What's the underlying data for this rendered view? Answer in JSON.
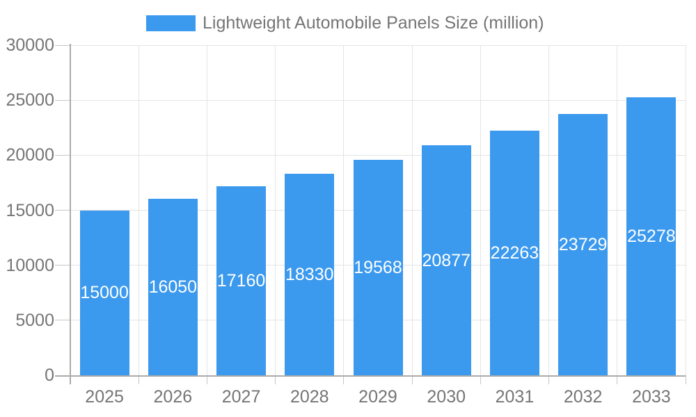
{
  "legend": {
    "label": "Lightweight Automobile Panels Size (million)",
    "swatch_color": "#3B99EE"
  },
  "chart_data": {
    "type": "bar",
    "title": "Lightweight Automobile Panels Size (million)",
    "categories": [
      "2025",
      "2026",
      "2027",
      "2028",
      "2029",
      "2030",
      "2031",
      "2032",
      "2033"
    ],
    "values": [
      15000,
      16050,
      17160,
      18330,
      19568,
      20877,
      22263,
      23729,
      25278
    ],
    "series": [
      {
        "name": "Lightweight Automobile Panels Size (million)",
        "values": [
          15000,
          16050,
          17160,
          18330,
          19568,
          20877,
          22263,
          23729,
          25278
        ]
      }
    ],
    "xlabel": "",
    "ylabel": "",
    "ylim": [
      0,
      30000
    ],
    "yticks": [
      0,
      5000,
      10000,
      15000,
      20000,
      25000,
      30000
    ],
    "grid": true,
    "legend_position": "top",
    "value_labels": "inside-center",
    "colors": {
      "bar": "#3B99EE",
      "value_label": "#FFFFFF",
      "axis_text": "#757575",
      "gridline": "#E4E4E4",
      "tick": "#C6C6C6",
      "axis_line": "#ABABAB"
    }
  }
}
